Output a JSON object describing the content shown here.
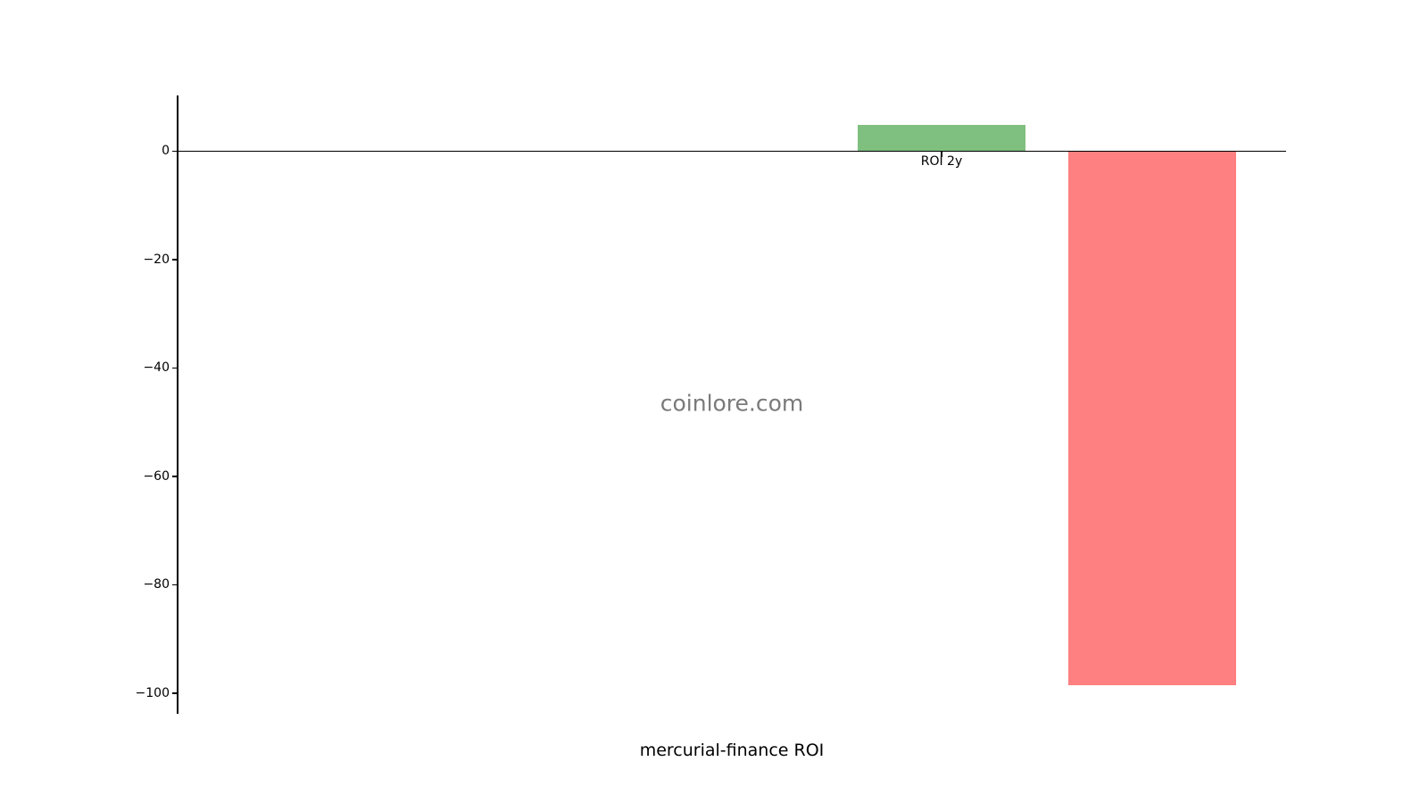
{
  "chart_data": {
    "type": "bar",
    "title": "",
    "xlabel": "mercurial-finance ROI",
    "ylabel": "",
    "categories": [
      "ROI 2y",
      ""
    ],
    "values": [
      4.9,
      -98.5
    ],
    "bar_colors": [
      "#7fbf7f",
      "#ff8080"
    ],
    "yticks": [
      0,
      -20,
      -40,
      -60,
      -80,
      -100
    ],
    "ytick_labels": [
      "0",
      "−20",
      "−40",
      "−60",
      "−80",
      "−100"
    ],
    "ylim": [
      -103.8,
      10.3
    ],
    "grid": false,
    "legend": null,
    "watermark": "coinlore.com",
    "axis_color": "#000000",
    "background_color": "#ffffff"
  }
}
